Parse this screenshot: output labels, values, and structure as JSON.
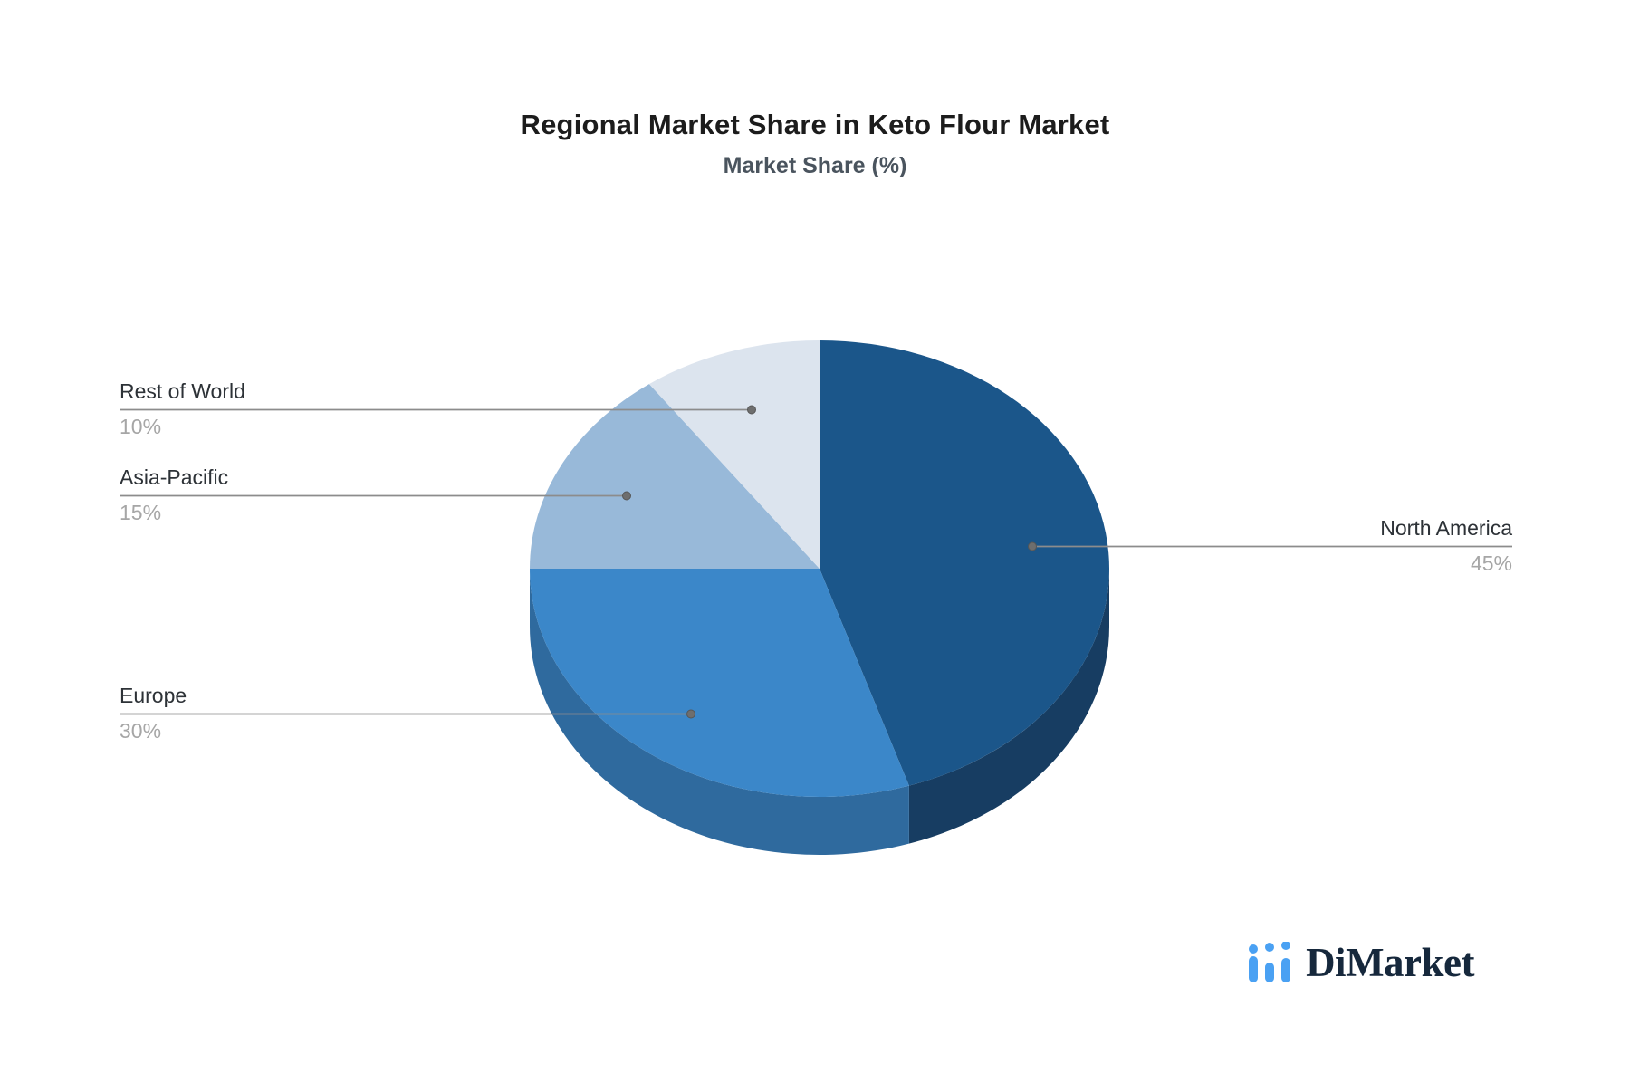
{
  "header": {
    "title": "Regional Market Share in Keto Flour Market",
    "subtitle": "Market Share (%)"
  },
  "chart_data": {
    "type": "pie",
    "title": "Regional Market Share in Keto Flour Market",
    "subtitle": "Market Share (%)",
    "value_unit": "%",
    "effect": "3d",
    "start_angle_deg": 0,
    "direction": "clockwise",
    "legend": "none",
    "slices": [
      {
        "label": "North America",
        "value": 45,
        "color": "#1B568A",
        "side_color": "#173D62"
      },
      {
        "label": "Europe",
        "value": 30,
        "color": "#3B87C9",
        "side_color": "#2F6A9E"
      },
      {
        "label": "Asia-Pacific",
        "value": 15,
        "color": "#98B9D9",
        "side_color": "#7A9CBD"
      },
      {
        "label": "Rest of World",
        "value": 10,
        "color": "#DCE4EE",
        "side_color": "#B8C4D4"
      }
    ]
  },
  "callouts": [
    {
      "name": "North America",
      "value": "45%"
    },
    {
      "name": "Europe",
      "value": "30%"
    },
    {
      "name": "Asia-Pacific",
      "value": "15%"
    },
    {
      "name": "Rest of World",
      "value": "10%"
    }
  ],
  "branding": {
    "text": "DiMarket",
    "icon": "bar-chart-logo-icon"
  },
  "colors": {
    "title": "#1c1c1c",
    "subtitle": "#4a545e",
    "label_name": "#2d3237",
    "label_value": "#a6a6a6",
    "connector_line": "#8c8c8c",
    "connector_dot": "#6e6e6e",
    "logo_text": "#16283c",
    "logo_icon": "#4AA1F3"
  }
}
